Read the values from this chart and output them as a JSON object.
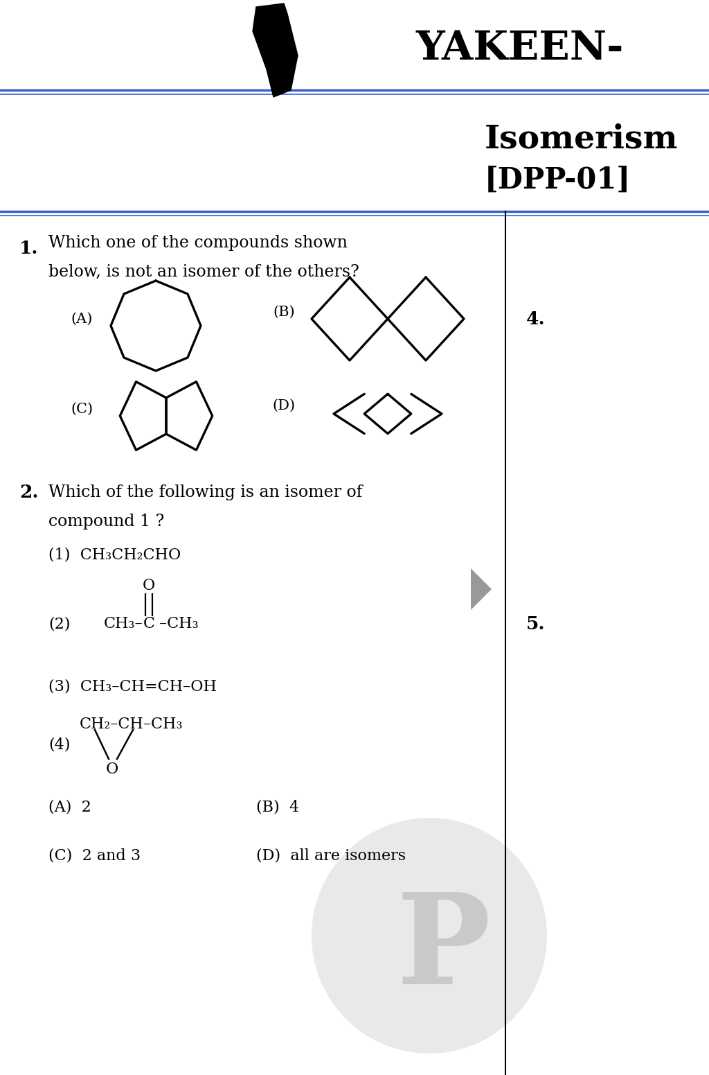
{
  "title_yakeen": "YAKEEN-",
  "title_isomerism": "Isomerism",
  "title_dpp": "[DPP-01]",
  "bg_color": "#ffffff",
  "header_line_color": "#3a5fcd",
  "q1_num": "1.",
  "q1_text_line1": "Which one of the compounds shown",
  "q1_text_line2": "below, is not an isomer of the others?",
  "q2_num": "2.",
  "q2_text_line1": "Which of the following is an isomer of",
  "q2_text_line2": "compound 1 ?",
  "label_A": "(A)",
  "label_B": "(B)",
  "label_C": "(C)",
  "label_D": "(D)",
  "label_4": "4.",
  "label_5": "5.",
  "opt1": "(1)  CH₃CH₂CHO",
  "opt2_prefix": "(2)  CH₃–C–CH₃",
  "opt3": "(3)  CH₃–CH=CH–OH",
  "opt4_top": "CH₂–CH–CH₃",
  "opt4_num": "(4)",
  "opt4_O": "O",
  "opt2_O": "O",
  "ans_A": "(A)  2",
  "ans_B": "(B)  4",
  "ans_C": "(C)  2 and 3",
  "ans_D": "(D)  all are isomers",
  "font_q": 17,
  "font_body": 16,
  "font_label": 15
}
